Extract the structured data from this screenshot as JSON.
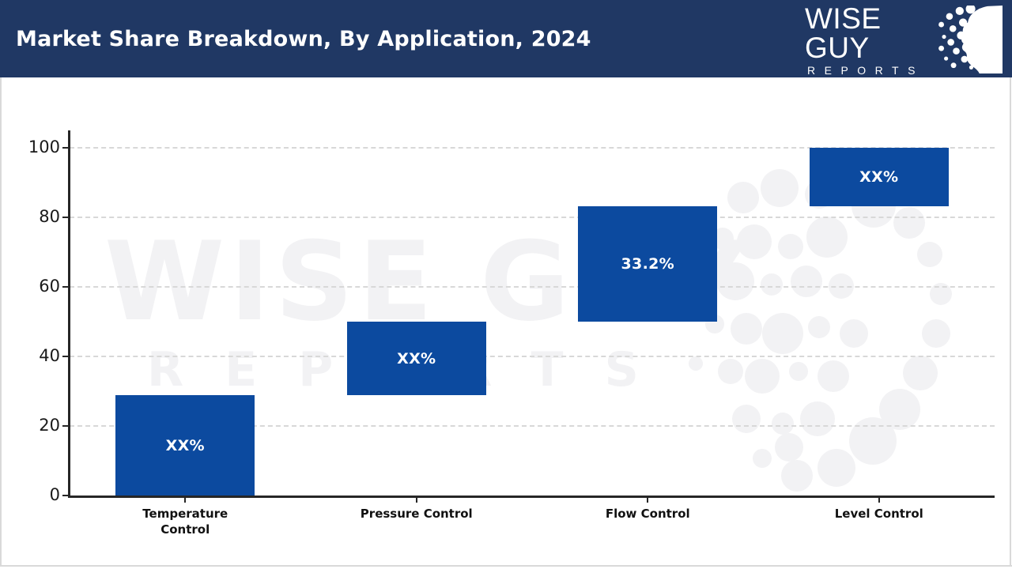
{
  "header": {
    "title": "Market Share Breakdown, By Application, 2024",
    "logo": {
      "line1": "WISE GUY",
      "line2": "REPORTS"
    }
  },
  "chart_data": {
    "type": "bar",
    "subtype": "waterfall",
    "title": "Market Share Breakdown, By Application, 2024",
    "categories": [
      "Temperature\nControl",
      "Pressure Control",
      "Flow Control",
      "Level Control"
    ],
    "segments": [
      {
        "category": "Temperature Control",
        "start": 0,
        "end": 28.8,
        "value": 28.8,
        "value_label": "XX%"
      },
      {
        "category": "Pressure Control",
        "start": 28.8,
        "end": 50.0,
        "value": 21.2,
        "value_label": "XX%"
      },
      {
        "category": "Flow Control",
        "start": 50.0,
        "end": 83.2,
        "value": 33.2,
        "value_label": "33.2%"
      },
      {
        "category": "Level Control",
        "start": 83.2,
        "end": 100,
        "value": 16.8,
        "value_label": "XX%"
      }
    ],
    "yticks": [
      0,
      20,
      40,
      60,
      80,
      100
    ],
    "ylim": [
      0,
      105
    ],
    "xlabel": "",
    "ylabel": "",
    "grid": "horizontal-dashed",
    "legend": "none",
    "watermark": {
      "line1": "WISE GUY",
      "line2": "R E P O R T S"
    }
  },
  "colors": {
    "header_bg": "#203864",
    "bar": "#0c4a9f",
    "grid": "#d8d8d8",
    "axis": "#262626",
    "watermark": "#f2f2f4",
    "card_border": "#d9d9d9",
    "title_text": "#ffffff",
    "bar_label_text": "#ffffff"
  }
}
